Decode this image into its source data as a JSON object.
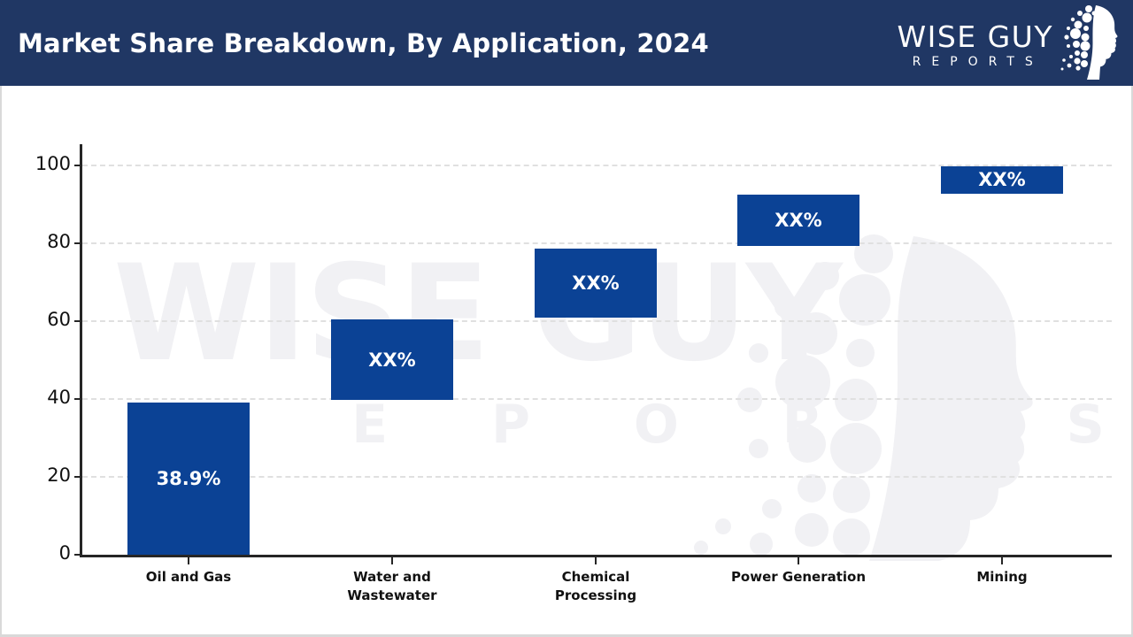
{
  "header": {
    "title": "Market Share Breakdown, By Application, 2024",
    "logo": {
      "line1": "WISE GUY",
      "line2": "REPORTS",
      "icon": "dotted-face-profile"
    }
  },
  "watermark": {
    "line1": "WISE GUY",
    "line2": "R E P O R T S",
    "icon": "dotted-face-profile"
  },
  "colors": {
    "header_bg": "#203764",
    "bar": "#0b4295",
    "bar_label": "#ffffff",
    "grid": "#e0e0e0",
    "axis": "#262626",
    "watermark": "#f1f1f4"
  },
  "chart_data": {
    "type": "bar",
    "variant": "waterfall",
    "title": "Market Share Breakdown, By Application, 2024",
    "xlabel": "",
    "ylabel": "",
    "ylim": [
      0,
      100
    ],
    "yticks": [
      0,
      20,
      40,
      60,
      80,
      100
    ],
    "grid": "horizontal-dashed",
    "legend": "none",
    "categories": [
      "Oil and Gas",
      "Water and\nWastewater",
      "Chemical\nProcessing",
      "Power Generation",
      "Mining"
    ],
    "segments": [
      {
        "category": "Oil and Gas",
        "start": 0,
        "end": 39.0,
        "label": "38.9%"
      },
      {
        "category": "Water and\nWastewater",
        "start": 39.8,
        "end": 60.4,
        "label": "XX%"
      },
      {
        "category": "Chemical\nProcessing",
        "start": 61.0,
        "end": 78.6,
        "label": "XX%"
      },
      {
        "category": "Power Generation",
        "start": 79.3,
        "end": 92.5,
        "label": "XX%"
      },
      {
        "category": "Mining",
        "start": 92.7,
        "end": 99.8,
        "label": "XX%"
      }
    ]
  }
}
